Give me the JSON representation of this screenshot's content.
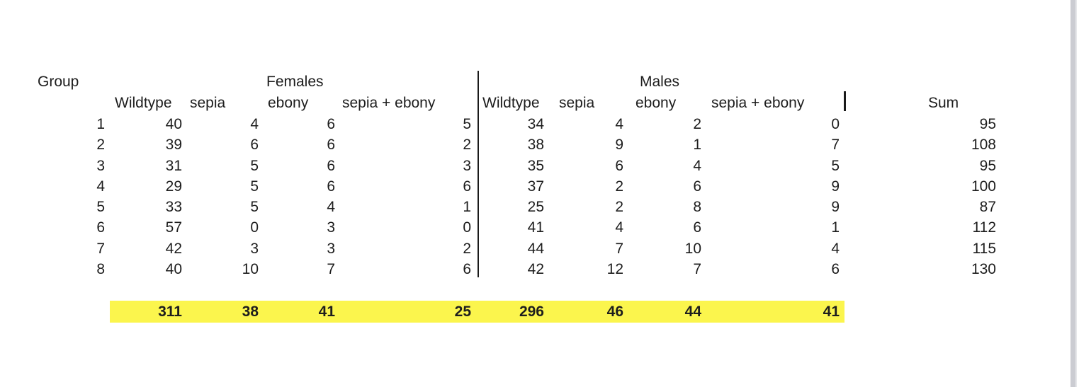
{
  "table": {
    "group_label": "Group",
    "females_label": "Females",
    "males_label": "Males",
    "sum_label": "Sum",
    "female_columns": [
      "Wildtype",
      "sepia",
      "ebony",
      "sepia + ebony"
    ],
    "male_columns": [
      "Wildtype",
      "sepia",
      "ebony",
      "sepia + ebony"
    ],
    "rows": [
      {
        "group": "1",
        "fw": "40",
        "fs": "4",
        "fe": "6",
        "fse": "5",
        "mw": "34",
        "ms": "4",
        "me": "2",
        "mse": "0",
        "sum": "95"
      },
      {
        "group": "2",
        "fw": "39",
        "fs": "6",
        "fe": "6",
        "fse": "2",
        "mw": "38",
        "ms": "9",
        "me": "1",
        "mse": "7",
        "sum": "108"
      },
      {
        "group": "3",
        "fw": "31",
        "fs": "5",
        "fe": "6",
        "fse": "3",
        "mw": "35",
        "ms": "6",
        "me": "4",
        "mse": "5",
        "sum": "95"
      },
      {
        "group": "4",
        "fw": "29",
        "fs": "5",
        "fe": "6",
        "fse": "6",
        "mw": "37",
        "ms": "2",
        "me": "6",
        "mse": "9",
        "sum": "100"
      },
      {
        "group": "5",
        "fw": "33",
        "fs": "5",
        "fe": "4",
        "fse": "1",
        "mw": "25",
        "ms": "2",
        "me": "8",
        "mse": "9",
        "sum": "87"
      },
      {
        "group": "6",
        "fw": "57",
        "fs": "0",
        "fe": "3",
        "fse": "0",
        "mw": "41",
        "ms": "4",
        "me": "6",
        "mse": "1",
        "sum": "112"
      },
      {
        "group": "7",
        "fw": "42",
        "fs": "3",
        "fe": "3",
        "fse": "2",
        "mw": "44",
        "ms": "7",
        "me": "10",
        "mse": "4",
        "sum": "115"
      },
      {
        "group": "8",
        "fw": "40",
        "fs": "10",
        "fe": "7",
        "fse": "6",
        "mw": "42",
        "ms": "12",
        "me": "7",
        "mse": "6",
        "sum": "130"
      }
    ],
    "totals": {
      "fw": "311",
      "fs": "38",
      "fe": "41",
      "fse": "25",
      "mw": "296",
      "ms": "46",
      "me": "44",
      "mse": "41"
    },
    "colors": {
      "highlight": "#FBF54D",
      "text": "#1d1d1d",
      "separator": "#1a1a1a",
      "scrollbar": "#cbccd2"
    }
  }
}
